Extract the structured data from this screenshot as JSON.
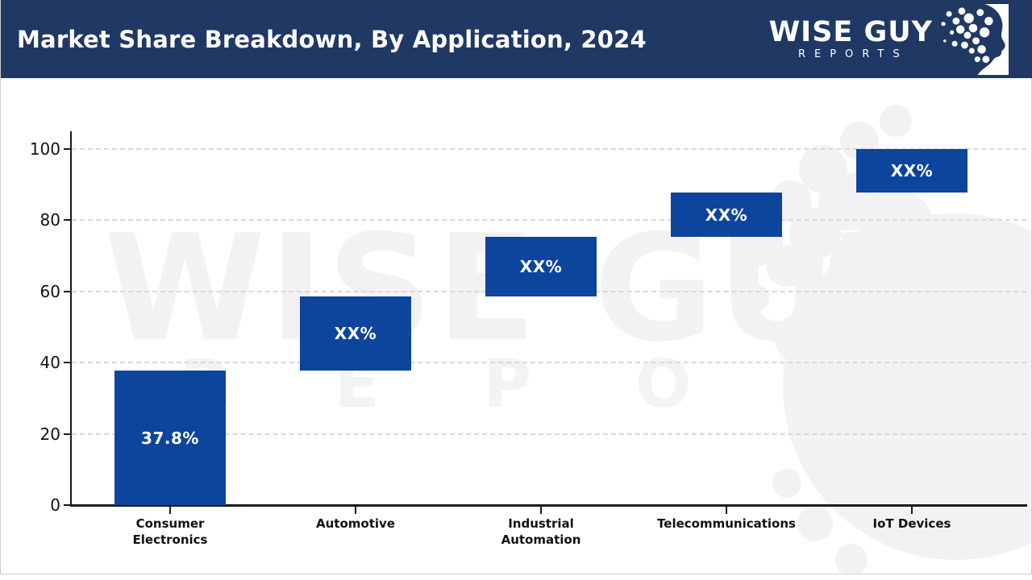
{
  "header": {
    "title": "Market Share Breakdown, By Application, 2024",
    "logo": {
      "wise_guy": "WISE GUY",
      "reports": "REPORTS"
    }
  },
  "watermark": {
    "wise_guy": "WISE GUY",
    "reports": "R E P O R T S"
  },
  "chart_data": {
    "type": "bar",
    "subtype": "waterfall",
    "title": "Market Share Breakdown, By Application, 2024",
    "categories": [
      "Consumer Electronics",
      "Automotive",
      "Industrial Automation",
      "Telecommunications",
      "IoT Devices"
    ],
    "segments": [
      {
        "id": "consumer-electronics",
        "category_lines": [
          "Consumer",
          "Electronics"
        ],
        "start": 0,
        "end": 37.8,
        "value_label": "37.8%"
      },
      {
        "id": "automotive",
        "category_lines": [
          "Automotive"
        ],
        "start": 37.8,
        "end": 58.6,
        "value_label": "XX%"
      },
      {
        "id": "industrial-automation",
        "category_lines": [
          "Industrial",
          "Automation"
        ],
        "start": 58.6,
        "end": 75.4,
        "value_label": "XX%"
      },
      {
        "id": "telecommunications",
        "category_lines": [
          "Telecommunications"
        ],
        "start": 75.4,
        "end": 87.8,
        "value_label": "XX%"
      },
      {
        "id": "iot-devices",
        "category_lines": [
          "IoT Devices"
        ],
        "start": 87.8,
        "end": 100,
        "value_label": "XX%"
      }
    ],
    "yticks": [
      0,
      20,
      40,
      60,
      80,
      100
    ],
    "ylim": [
      0,
      105
    ],
    "xlabel": "",
    "ylabel": "",
    "grid": "horizontal-dashed",
    "legend": "none",
    "colors": {
      "bar": "#0E459C",
      "header_background": "#1F3864",
      "title_text": "#FFFFFF",
      "bar_value_text": "#FFFFFF",
      "axis": "#1A1A1A",
      "gridline": "#D8D8D8",
      "watermark": "#F2F2F5"
    }
  }
}
